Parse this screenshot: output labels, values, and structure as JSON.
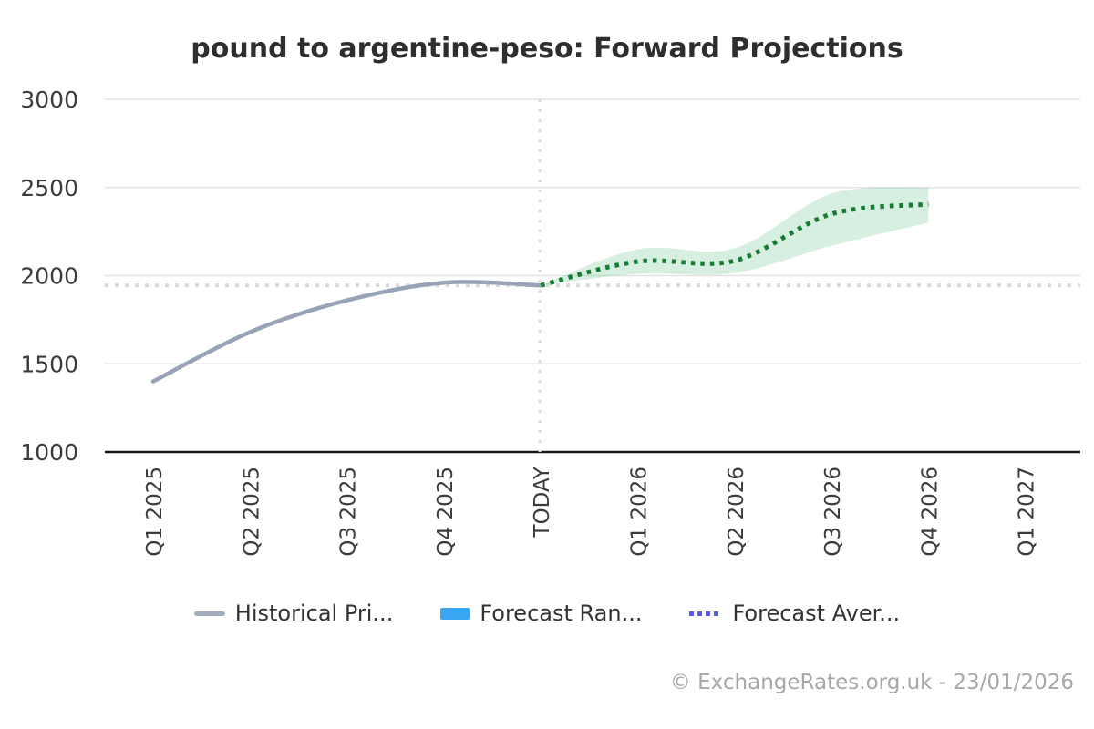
{
  "title": "pound to argentine-peso: Forward Projections",
  "watermark": "© ExchangeRates.org.uk - 23/01/2026",
  "legend": {
    "items": [
      {
        "label": "Historical Pri...",
        "swatch": "line",
        "color": "#a3adbd"
      },
      {
        "label": "Forecast Ran...",
        "swatch": "rect",
        "color": "#3ba7f2"
      },
      {
        "label": "Forecast Aver...",
        "swatch": "dotted",
        "color": "#5d5dd5"
      }
    ]
  },
  "chart_data": {
    "type": "line",
    "title": "pound to argentine-peso: Forward Projections",
    "categories": [
      "Q1 2025",
      "Q2 2025",
      "Q3 2025",
      "Q4 2025",
      "TODAY",
      "Q1 2026",
      "Q2 2026",
      "Q3 2026",
      "Q4 2026",
      "Q1 2027"
    ],
    "ylim": [
      1000,
      3000
    ],
    "yticks": [
      1000,
      1500,
      2000,
      2500,
      3000
    ],
    "grid": "horizontal-only",
    "legend_position": "bottom",
    "today_index": 4,
    "current_value": 1945,
    "series": [
      {
        "name": "Historical Price",
        "x_start": 0,
        "values": [
          1400,
          1680,
          1860,
          1960,
          1945
        ],
        "color": "#98a4b6",
        "style": "solid"
      },
      {
        "name": "Forecast Average",
        "x_start": 4,
        "values": [
          1945,
          2080,
          2085,
          2350,
          2405
        ],
        "color": "#147d33",
        "style": "dotted"
      }
    ],
    "forecast_band": {
      "name": "Forecast Range",
      "x_start": 4,
      "low": [
        1945,
        2010,
        2015,
        2170,
        2300
      ],
      "high": [
        1945,
        2150,
        2155,
        2465,
        2500
      ],
      "fill": "#5fbf83",
      "fill_opacity": 0.25
    }
  }
}
